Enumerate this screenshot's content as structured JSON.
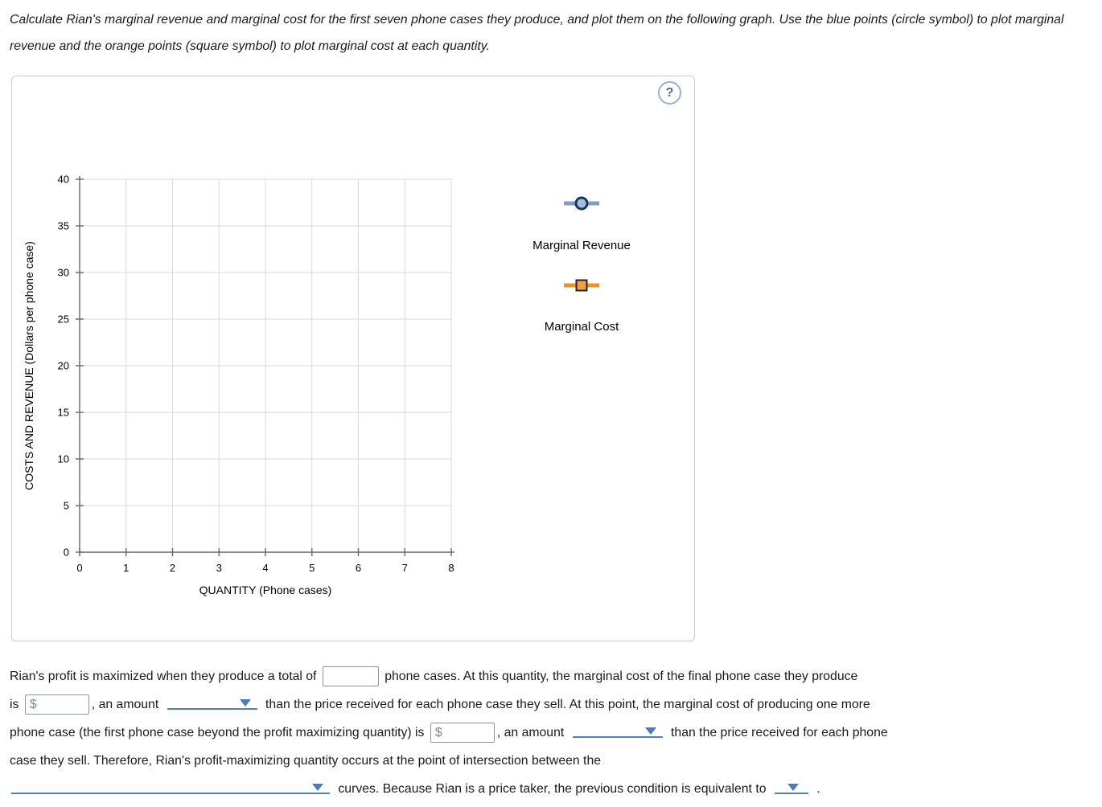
{
  "page": {
    "instructions": "Calculate Rian's marginal revenue and marginal cost for the first seven phone cases they produce, and plot them on the following graph. Use the blue points (circle symbol) to plot marginal revenue and the orange points (square symbol) to plot marginal cost at each quantity."
  },
  "panel": {
    "help_icon": "?"
  },
  "chart_data": {
    "type": "scatter",
    "title": "",
    "xlabel": "QUANTITY (Phone cases)",
    "ylabel": "COSTS AND REVENUE (Dollars per phone case)",
    "xlim": [
      0,
      8
    ],
    "ylim": [
      0,
      40
    ],
    "x_ticks": [
      0,
      1,
      2,
      3,
      4,
      5,
      6,
      7,
      8
    ],
    "y_ticks": [
      0,
      5,
      10,
      15,
      20,
      25,
      30,
      35,
      40
    ],
    "grid": true,
    "legend_position": "right of plot",
    "series": [
      {
        "name": "Marginal Revenue",
        "marker": "circle",
        "marker_fill": "#a8bedb",
        "marker_stroke": "#17375e",
        "line_color": "#7d9ec7",
        "points": []
      },
      {
        "name": "Marginal Cost",
        "marker": "square",
        "marker_fill": "#f2a13c",
        "marker_stroke": "#262626",
        "line_color": "#e8912d",
        "points": []
      }
    ]
  },
  "fill_in": {
    "line1_before": "Rian's profit is maximized when they produce a total of",
    "line1_after": "phone cases. At this quantity, the marginal cost of the final phone case they produce",
    "line2_before": "is",
    "line2_mid": ", an amount",
    "line2_after": "than the price received for each phone case they sell. At this point, the marginal cost of producing one more",
    "line3_before": "phone case (the first phone case beyond the profit maximizing quantity) is",
    "line3_mid": ", an amount",
    "line3_after": "than the price received for each phone",
    "line4": "case they sell. Therefore, Rian's profit-maximizing quantity occurs at the point of intersection between the",
    "line5_mid": "curves. Because Rian is a price taker, the previous condition is equivalent to",
    "line5_end": ".",
    "currency": "$",
    "inputs": {
      "total_quantity": "",
      "mc_final": "",
      "mc_next": ""
    }
  },
  "ui_colors": {
    "dropdown_accent": "#4f81bd",
    "panel_border": "#c9cdd1",
    "grid_line": "#d9d9d9",
    "axis_line": "#666666"
  }
}
